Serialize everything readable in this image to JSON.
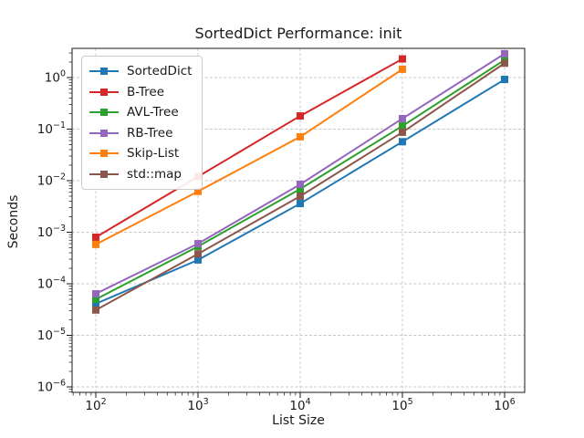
{
  "chart_data": {
    "type": "line",
    "title": "SortedDict Performance: init",
    "xlabel": "List Size",
    "ylabel": "Seconds",
    "x_scale": "log",
    "y_scale": "log",
    "xlim": [
      59,
      1580000
    ],
    "ylim": [
      7.8e-07,
      3.7
    ],
    "x_ticks": [
      100,
      1000,
      10000,
      100000,
      1000000
    ],
    "x_tick_labels": [
      "10^2",
      "10^3",
      "10^4",
      "10^5",
      "10^6"
    ],
    "y_ticks": [
      1,
      0.1,
      0.01,
      0.001,
      0.0001,
      1e-05,
      1e-06
    ],
    "y_tick_labels": [
      "10^0",
      "10^-1",
      "10^-2",
      "10^-3",
      "10^-4",
      "10^-5",
      "10^-6"
    ],
    "grid": true,
    "legend_position": "upper left",
    "marker": "square",
    "series": [
      {
        "name": "SortedDict",
        "color": "#1f77b4",
        "x": [
          100,
          1000,
          10000,
          100000,
          1000000
        ],
        "y": [
          4.1e-05,
          0.00029,
          0.0036,
          0.057,
          0.92
        ]
      },
      {
        "name": "B-Tree",
        "color": "#d62728",
        "x": [
          100,
          1000,
          10000,
          100000
        ],
        "y": [
          0.0008,
          0.012,
          0.18,
          2.3
        ]
      },
      {
        "name": "AVL-Tree",
        "color": "#2ca02c",
        "x": [
          100,
          1000,
          10000,
          100000,
          1000000
        ],
        "y": [
          5e-05,
          0.00053,
          0.0069,
          0.115,
          2.2
        ]
      },
      {
        "name": "RB-Tree",
        "color": "#9467bd",
        "x": [
          100,
          1000,
          10000,
          100000,
          1000000
        ],
        "y": [
          6.4e-05,
          0.0006,
          0.0085,
          0.16,
          2.9
        ]
      },
      {
        "name": "Skip-List",
        "color": "#ff7f0e",
        "x": [
          100,
          1000,
          10000,
          100000
        ],
        "y": [
          0.00058,
          0.0062,
          0.071,
          1.45
        ]
      },
      {
        "name": "std::map",
        "color": "#8c564b",
        "x": [
          100,
          1000,
          10000,
          100000,
          1000000
        ],
        "y": [
          3.1e-05,
          0.00038,
          0.005,
          0.087,
          1.9
        ]
      }
    ]
  }
}
